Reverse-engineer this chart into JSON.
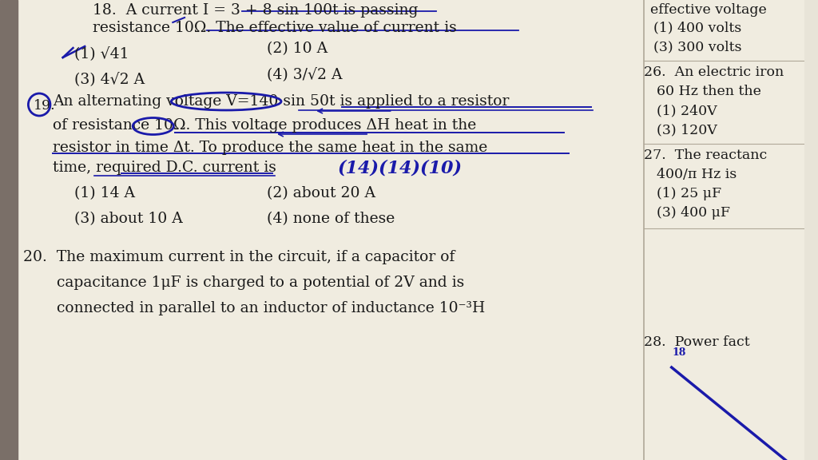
{
  "bg_color": "#e8e4d8",
  "page_color": "#f0ece0",
  "left_strip_color": "#7a6f68",
  "right_col_color": "#ece8dc",
  "divider_color": "#b0a898",
  "text_color": "#1a1a1a",
  "ink_color": "#1a1aaa",
  "font_size_main": 13.5,
  "font_size_right": 12.5,
  "lines": {
    "q18_line1": "18.  A current I = 3 + 8 sin 100t is passing",
    "q18_line2": "resistance 10Ω. The effective value of current is",
    "q18_o1": "(1) √41",
    "q18_o2": "(2) 10 A",
    "q18_o3": "(3) 4√2 A",
    "q18_o4": "(4) 3/√2 A",
    "q19_line1": "An alternating voltage V=140 sin 50t is applied to a resistor",
    "q19_line2": "of resistance 10Ω. This voltage produces ΔH heat in the",
    "q19_line3": "resistor in time Δt. To produce the same heat in the same",
    "q19_line4": "time, required D.C. current is",
    "q19_annot": "(14)(14)(10)",
    "q19_o1": "(1) 14 A",
    "q19_o2": "(2) about 20 A",
    "q19_o3": "(3) about 10 A",
    "q19_o4": "(4) none of these",
    "q20_line1": "20.  The maximum current in the circuit, if a capacitor of",
    "q20_line2": "       capacitance 1μF is charged to a potential of 2V and is",
    "q20_line3": "       connected in parallel to an inductor of inductance 10⁻³H",
    "r_top": "effective voltage",
    "r_1": "(1) 400 volts",
    "r_2": "(3) 300 volts",
    "r_26": "26.  An electric iron",
    "r_26b": "60 Hz then the",
    "r_26c": "(1) 240V",
    "r_26d": "(3) 120V",
    "r_27": "27.  The reactanc",
    "r_27b": "400/π Hz is",
    "r_27c": "(1) 25 μF",
    "r_27d": "(3) 400 μF",
    "r_28": "28.  Power fact"
  }
}
